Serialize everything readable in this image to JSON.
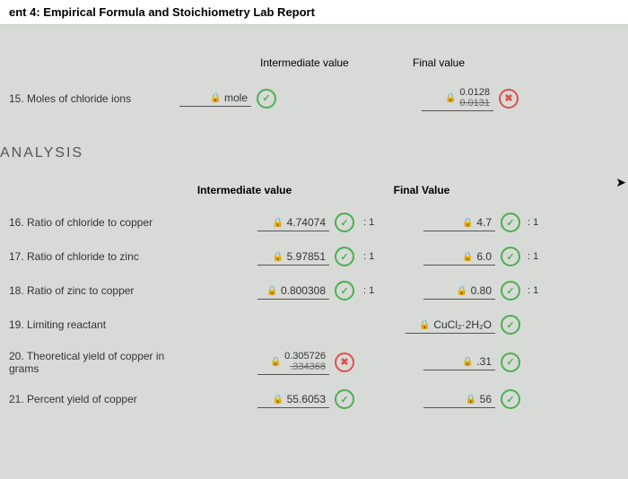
{
  "header": {
    "title": "ent 4: Empirical Formula and Stoichiometry Lab Report"
  },
  "top": {
    "intermediate_head": "Intermediate value",
    "final_head": "Final value",
    "row15": {
      "label": "15. Moles of chloride ions",
      "unit_value": "mole",
      "final_top": "0.0128",
      "final_strike": "0.0131"
    }
  },
  "analysis": {
    "title": "ANALYSIS",
    "intermediate_head": "Intermediate value",
    "final_head": "Final Value",
    "rows": [
      {
        "label": "16. Ratio of chloride to copper",
        "inter": "4.74074",
        "inter_ok": true,
        "inter_suffix": ": 1",
        "final": "4.7",
        "final_ok": true,
        "final_suffix": ": 1"
      },
      {
        "label": "17. Ratio of chloride to zinc",
        "inter": "5.97851",
        "inter_ok": true,
        "inter_suffix": ": 1",
        "final": "6.0",
        "final_ok": true,
        "final_suffix": ": 1"
      },
      {
        "label": "18. Ratio of zinc to copper",
        "inter": "0.800308",
        "inter_ok": true,
        "inter_suffix": ": 1",
        "final": "0.80",
        "final_ok": true,
        "final_suffix": ": 1"
      }
    ],
    "row19": {
      "label": "19. Limiting reactant",
      "final": "CuCl₂·2H₂O",
      "final_ok": true
    },
    "row20": {
      "label": "20. Theoretical yield of copper in grams",
      "inter_top": "0.305726",
      "inter_strike": ".334368",
      "inter_ok": false,
      "final": ".31",
      "final_ok": true
    },
    "row21": {
      "label": "21. Percent yield of copper",
      "inter": "55.6053",
      "inter_ok": true,
      "final": "56",
      "final_ok": true
    }
  },
  "icons": {
    "lock": "🔒",
    "check": "✓",
    "x": "✖"
  }
}
